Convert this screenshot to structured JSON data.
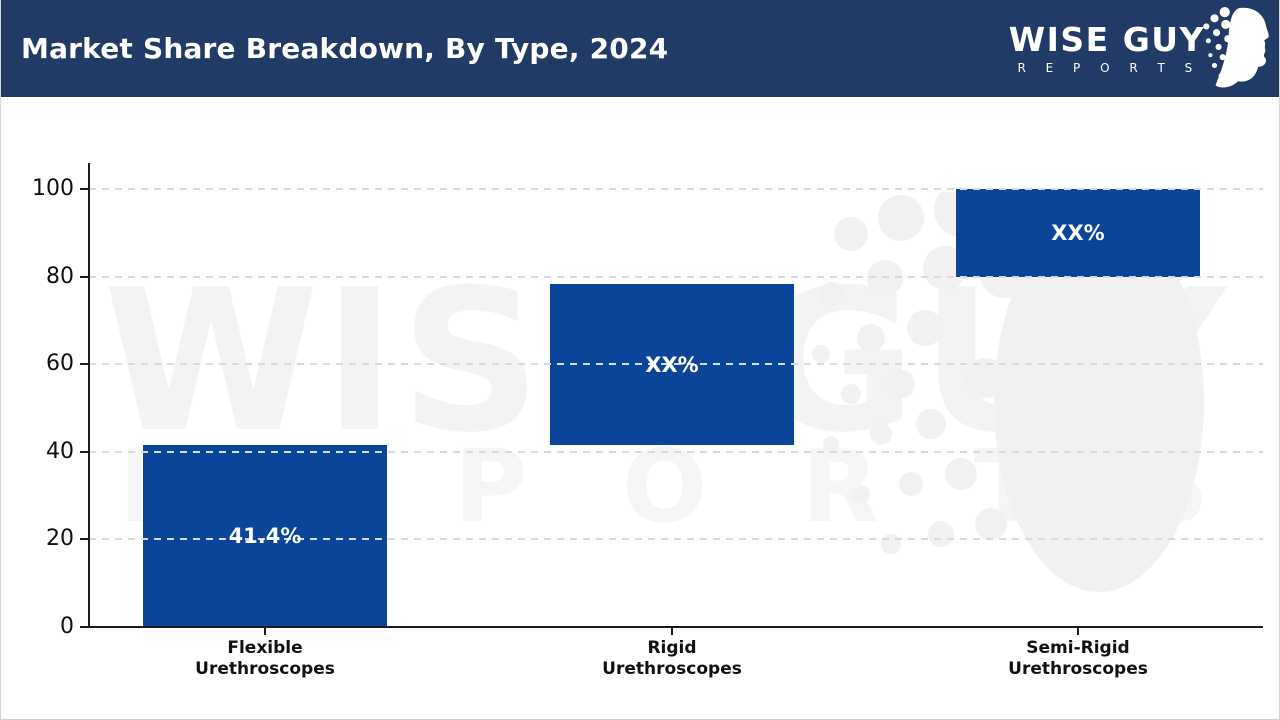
{
  "header": {
    "title": "Market Share Breakdown, By Type, 2024",
    "logo": {
      "brand_line1": "WISE GUY",
      "brand_line2": "R E P O R T S"
    }
  },
  "watermark": {
    "line1": "WISE GUY",
    "line2": "R E P O R T S"
  },
  "colors": {
    "header_bg": "#213a66",
    "title_text": "#ffffff",
    "bar_fill": "#0b4599",
    "bar_label_text": "#ffffff",
    "axis_line": "#1c1c1c",
    "tick_label_text": "#111111",
    "gridline": "#d9d9d9",
    "watermark_text": "#f3f3f3"
  },
  "chart_data": {
    "type": "bar",
    "variant": "waterfall",
    "title": "Market Share Breakdown, By Type, 2024",
    "xlabel": "",
    "ylabel": "",
    "ylim": [
      0,
      105
    ],
    "yticks": [
      0,
      20,
      40,
      60,
      80,
      100
    ],
    "grid": "horizontal-dashed",
    "legend": "none",
    "categories": [
      {
        "line1": "Flexible",
        "line2": "Urethroscopes"
      },
      {
        "line1": "Rigid",
        "line2": "Urethroscopes"
      },
      {
        "line1": "Semi-Rigid",
        "line2": "Urethroscopes"
      }
    ],
    "series": [
      {
        "name": "Market Share",
        "segments": [
          {
            "category": "Flexible Urethroscopes",
            "start": 0,
            "end": 41.4,
            "value_label": "41.4%"
          },
          {
            "category": "Rigid Urethroscopes",
            "start": 41.4,
            "end": 78.2,
            "value_label": "XX%"
          },
          {
            "category": "Semi-Rigid Urethroscopes",
            "start": 80,
            "end": 100,
            "value_label": "XX%"
          }
        ]
      }
    ]
  }
}
